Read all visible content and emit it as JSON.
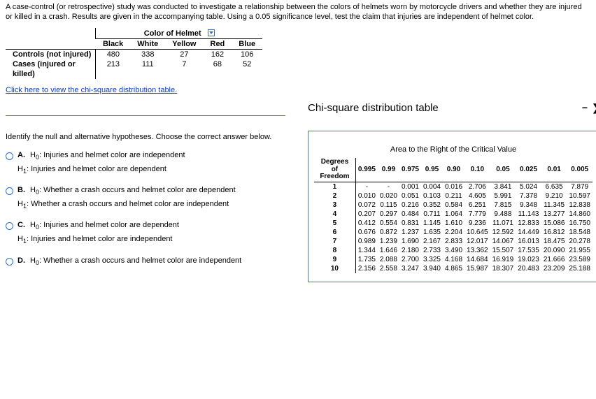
{
  "problem_text": "A case-control (or retrospective) study was conducted to investigate a relationship between the colors of helmets worn by motorcycle drivers and whether they are injured or killed in a crash. Results are given in the accompanying table. Using a 0.05 significance level, test the claim that injuries are independent of helmet color.",
  "helmet_table": {
    "group_header": "Color of Helmet",
    "cols": [
      "Black",
      "White",
      "Yellow",
      "Red",
      "Blue"
    ],
    "rows": [
      {
        "label": "Controls (not injured)",
        "vals": [
          "480",
          "338",
          "27",
          "162",
          "106"
        ]
      },
      {
        "label": "Cases (injured or killed)",
        "vals": [
          "213",
          "111",
          "7",
          "68",
          "52"
        ]
      }
    ]
  },
  "link_text": "Click here to view the chi-square distribution table.",
  "question_prompt": "Identify the null and alternative hypotheses. Choose the correct answer below.",
  "options": [
    {
      "letter": "A.",
      "h0": "Injuries and helmet color are independent",
      "h1": "Injuries and helmet color are dependent"
    },
    {
      "letter": "B.",
      "h0": "Whether a crash occurs and helmet color are dependent",
      "h1": "Whether a crash occurs and helmet color are independent"
    },
    {
      "letter": "C.",
      "h0": "Injuries and helmet color are dependent",
      "h1": "Injuries and helmet color are independent"
    },
    {
      "letter": "D.",
      "h0": "Whether a crash occurs and helmet color are independent",
      "h1": ""
    }
  ],
  "chi": {
    "title": "Chi-square distribution table",
    "caption": "Area to the Right of the Critical Value",
    "df_header": "Degrees of Freedom",
    "alphas": [
      "0.995",
      "0.99",
      "0.975",
      "0.95",
      "0.90",
      "0.10",
      "0.05",
      "0.025",
      "0.01",
      "0.005"
    ],
    "rows": [
      {
        "df": "1",
        "v": [
          "-",
          "-",
          "0.001",
          "0.004",
          "0.016",
          "2.706",
          "3.841",
          "5.024",
          "6.635",
          "7.879"
        ]
      },
      {
        "df": "2",
        "v": [
          "0.010",
          "0.020",
          "0.051",
          "0.103",
          "0.211",
          "4.605",
          "5.991",
          "7.378",
          "9.210",
          "10.597"
        ]
      },
      {
        "df": "3",
        "v": [
          "0.072",
          "0.115",
          "0.216",
          "0.352",
          "0.584",
          "6.251",
          "7.815",
          "9.348",
          "11.345",
          "12.838"
        ]
      },
      {
        "df": "4",
        "v": [
          "0.207",
          "0.297",
          "0.484",
          "0.711",
          "1.064",
          "7.779",
          "9.488",
          "11.143",
          "13.277",
          "14.860"
        ]
      },
      {
        "df": "5",
        "v": [
          "0.412",
          "0.554",
          "0.831",
          "1.145",
          "1.610",
          "9.236",
          "11.071",
          "12.833",
          "15.086",
          "16.750"
        ]
      },
      {
        "df": "6",
        "v": [
          "0.676",
          "0.872",
          "1.237",
          "1.635",
          "2.204",
          "10.645",
          "12.592",
          "14.449",
          "16.812",
          "18.548"
        ]
      },
      {
        "df": "7",
        "v": [
          "0.989",
          "1.239",
          "1.690",
          "2.167",
          "2.833",
          "12.017",
          "14.067",
          "16.013",
          "18.475",
          "20.278"
        ]
      },
      {
        "df": "8",
        "v": [
          "1.344",
          "1.646",
          "2.180",
          "2.733",
          "3.490",
          "13.362",
          "15.507",
          "17.535",
          "20.090",
          "21.955"
        ]
      },
      {
        "df": "9",
        "v": [
          "1.735",
          "2.088",
          "2.700",
          "3.325",
          "4.168",
          "14.684",
          "16.919",
          "19.023",
          "21.666",
          "23.589"
        ]
      },
      {
        "df": "10",
        "v": [
          "2.156",
          "2.558",
          "3.247",
          "3.940",
          "4.865",
          "15.987",
          "18.307",
          "20.483",
          "23.209",
          "25.188"
        ]
      }
    ]
  }
}
